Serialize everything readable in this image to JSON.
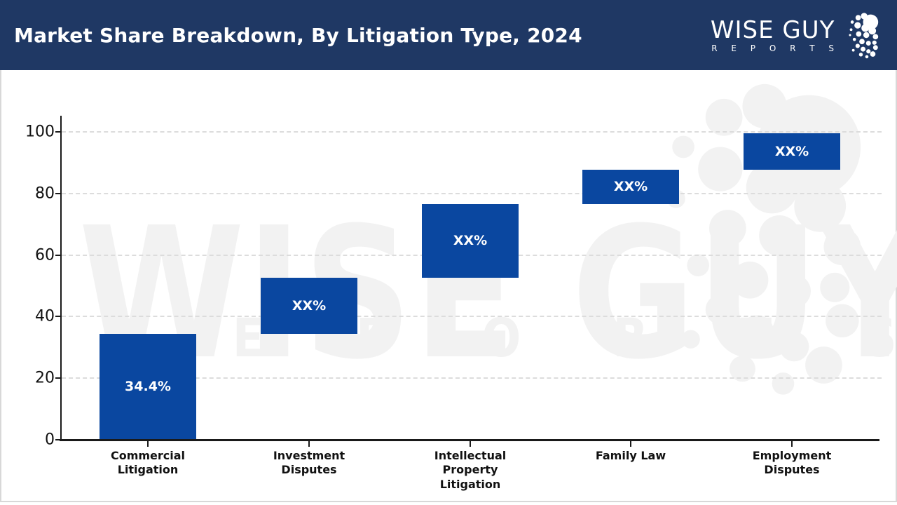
{
  "header": {
    "title": "Market Share Breakdown, By Litigation Type, 2024",
    "logo": {
      "line1": "WISE GUY",
      "line2": "R E P O R T S",
      "icon": "dotted-head-profile"
    }
  },
  "watermark": {
    "line1": "WISE GUY",
    "line2": "R E P O R T S",
    "icon": "dotted-head-profile"
  },
  "colors": {
    "header_bg": "#1F3864",
    "bar_blue": "#0A47A0",
    "grid": "#DCDCDC",
    "axis": "#1A1A1A",
    "watermark": "#F2F2F2",
    "bar_label_text": "#FFFFFF"
  },
  "chart_data": {
    "type": "bar",
    "subtype": "waterfall",
    "title": "Market Share Breakdown, By Litigation Type, 2024",
    "xlabel": "",
    "ylabel": "",
    "ylim": [
      0,
      100
    ],
    "yticks": [
      0,
      20,
      40,
      60,
      80,
      100
    ],
    "grid": "horizontal-dashed",
    "legend": "none",
    "categories": [
      "Commercial Litigation",
      "Investment Disputes",
      "Intellectual Property Litigation",
      "Family Law",
      "Employment Disputes"
    ],
    "segments": [
      {
        "category": "Commercial Litigation",
        "start": 0,
        "end": 34.4,
        "label": "34.4%"
      },
      {
        "category": "Investment Disputes",
        "start": 34.4,
        "end": 52.6,
        "label": "XX%"
      },
      {
        "category": "Intellectual Property Litigation",
        "start": 52.6,
        "end": 76.6,
        "label": "XX%"
      },
      {
        "category": "Family Law",
        "start": 76.6,
        "end": 87.8,
        "label": "XX%"
      },
      {
        "category": "Employment Disputes",
        "start": 87.8,
        "end": 99.6,
        "label": "XX%"
      }
    ]
  }
}
